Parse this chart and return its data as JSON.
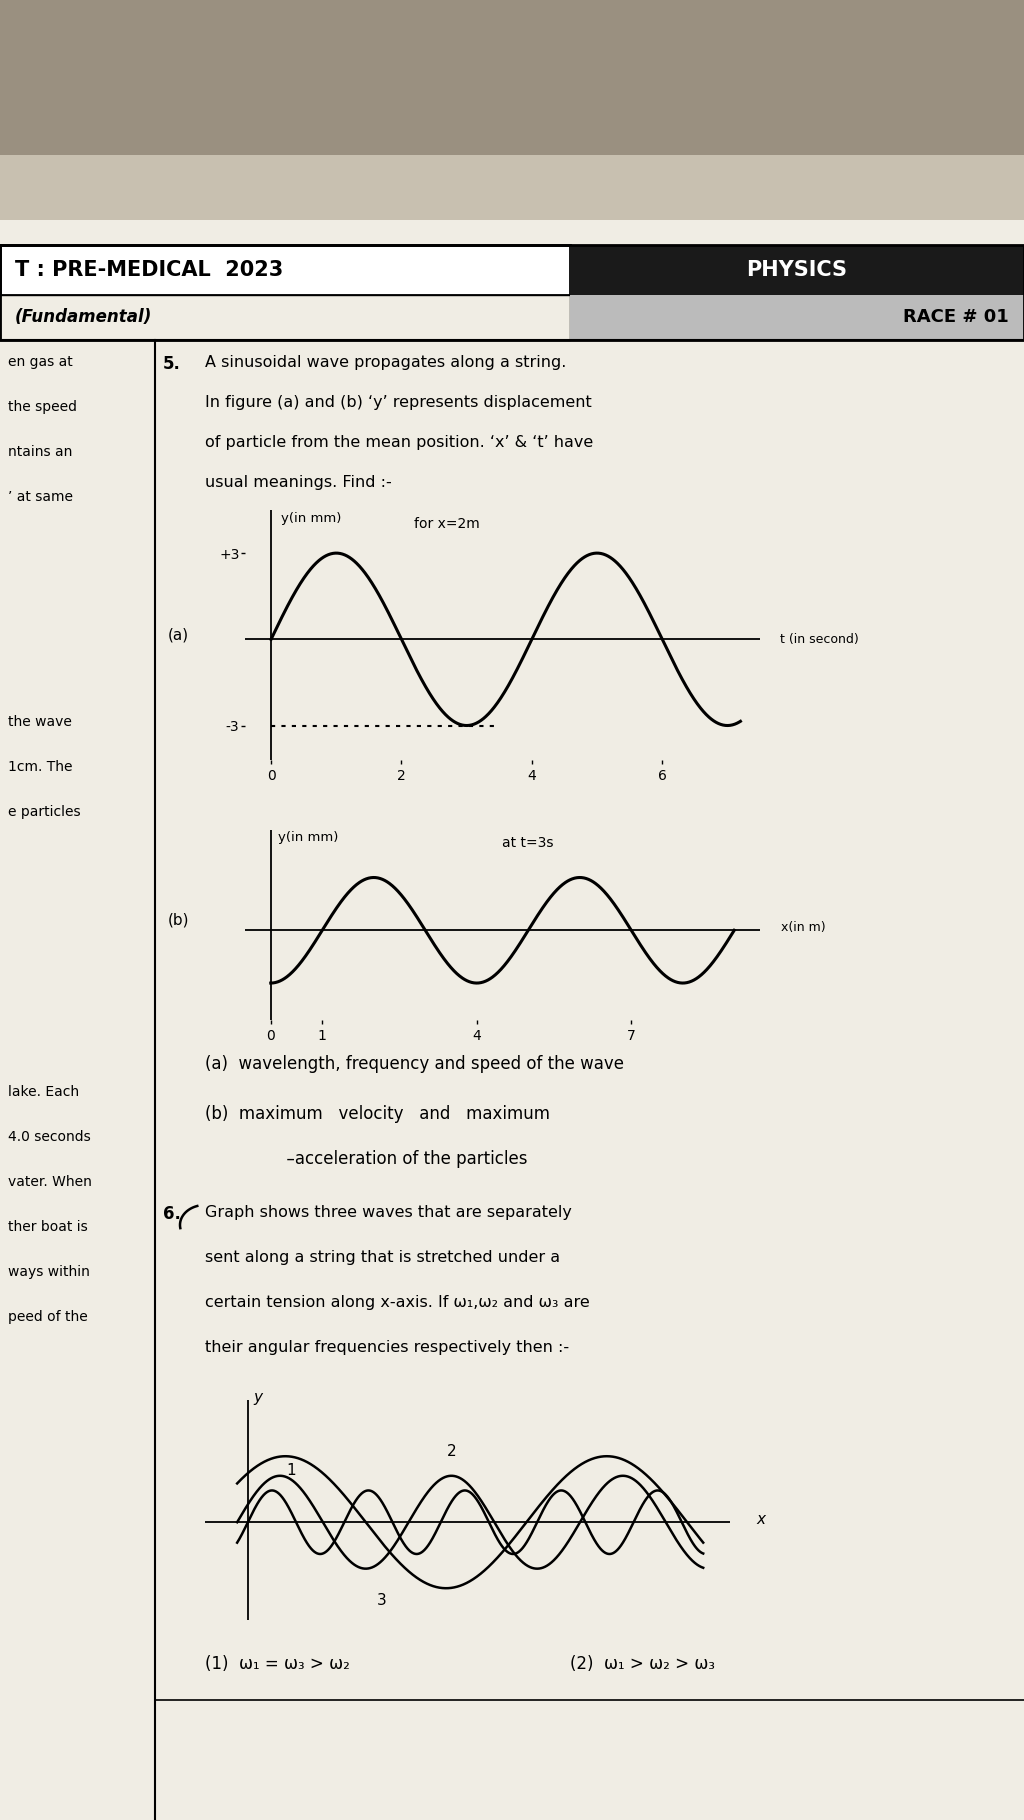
{
  "page_bg": "#e8e4d8",
  "top_shadow_color": "#8a8070",
  "header_left": "T : PRE-MEDICAL  2023",
  "header_right_top": "PHYSICS",
  "header_right_bot": "RACE # 01",
  "sub_header": "(Fundamental)",
  "left_col_texts": [
    "en gas at",
    "the speed",
    "ntains an",
    "’ at same",
    "the wave",
    "1cm. The",
    "e particles",
    "lake. Each",
    "4.0 seconds",
    "vater. When",
    "ther boat is",
    "ways within",
    "peed of the"
  ],
  "q5_text_lines": [
    "A sinusoidal wave propagates along a string.",
    "In figure (a) and (b) ‘y’ represents displacement",
    "of particle from the mean position. ‘x’ & ‘t’ have",
    "usual meanings. Find :-"
  ],
  "sub_a_text": "(a)  wavelength, frequency and speed of the wave",
  "sub_b_line1": "(b)  maximum   velocity   and   maximum",
  "sub_b_line2": "      –acceleration of the particles",
  "q6_text_lines": [
    "Graph shows three waves that are separately",
    "sent along a string that is stretched under a",
    "certain tension along x-axis. If ω₁,ω₂ and ω₃ are",
    "their angular frequencies respectively then :-"
  ],
  "ans_1": "(1)  ω₁ = ω₃ > ω₂",
  "ans_2": "(2)  ω₁ > ω₂ > ω₃"
}
